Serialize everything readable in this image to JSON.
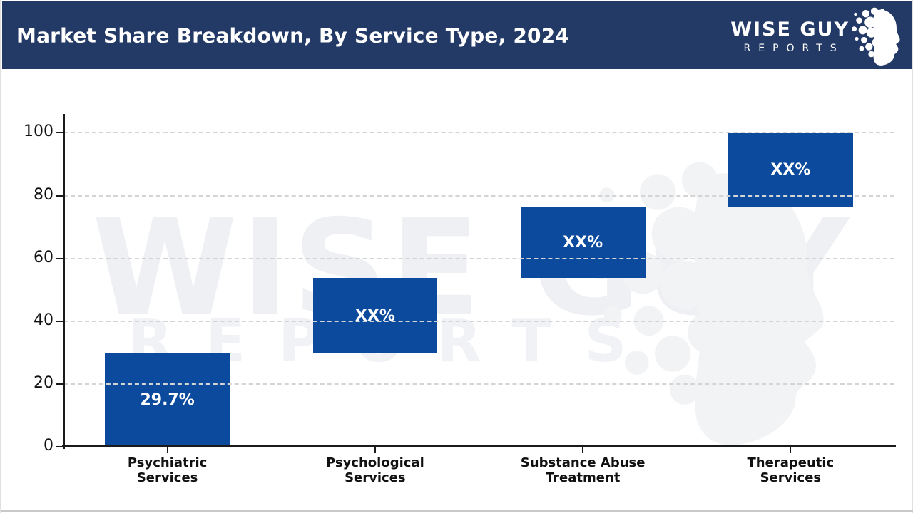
{
  "header": {
    "title": "Market Share Breakdown, By Service Type, 2024",
    "background_color": "#233a67",
    "logo": {
      "wordmark": "WISE GUY",
      "subtext": "REPORTS",
      "face_icon": "dotted-head-profile"
    }
  },
  "watermark": {
    "wordmark": "WISE GUY",
    "subtext": "REPORTS",
    "face_icon": "dotted-head-profile"
  },
  "chart_data": {
    "type": "bar",
    "subtype": "waterfall",
    "title": "Market Share Breakdown, By Service Type, 2024",
    "categories": [
      "Psychiatric\nServices",
      "Psychological\nServices",
      "Substance Abuse\nTreatment",
      "Therapeutic\nServices"
    ],
    "segments": [
      {
        "label": "29.7%",
        "start": 0,
        "end": 29.7
      },
      {
        "label": "XX%",
        "start": 29.7,
        "end": 53.8
      },
      {
        "label": "XX%",
        "start": 53.8,
        "end": 76.2
      },
      {
        "label": "XX%",
        "start": 76.2,
        "end": 100
      }
    ],
    "bar_color": "#0c4a9d",
    "bar_label_color": "#ffffff",
    "yticks": [
      0,
      20,
      40,
      60,
      80,
      100
    ],
    "ylim": [
      0,
      106
    ],
    "bar_width_fraction": 0.15,
    "grid": "horizontal-dashed",
    "grid_color": "#d4d4d4",
    "axis_color": "#1a1a1a"
  }
}
